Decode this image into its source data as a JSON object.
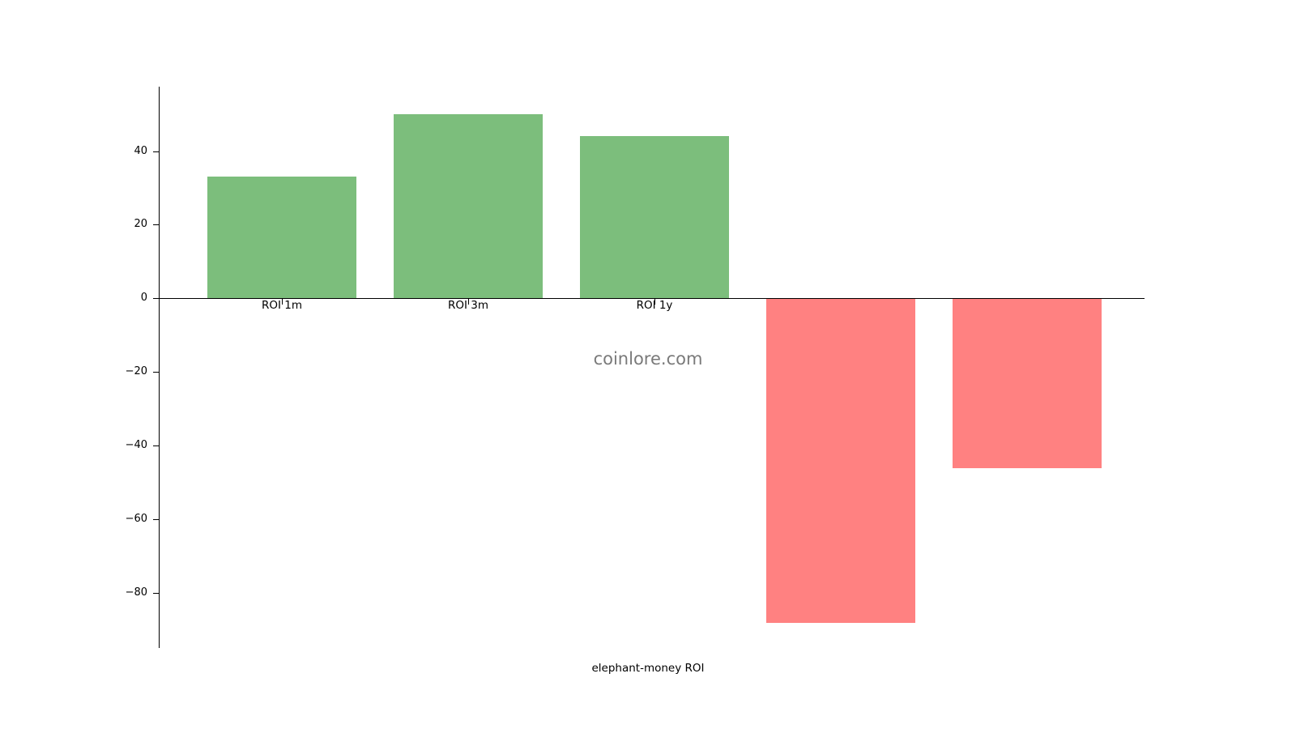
{
  "watermark": "coinlore.com",
  "caption": "elephant-money ROI",
  "colors": {
    "positive_bar": "#7cbe7c",
    "negative_bar": "#ff8181",
    "axis": "#000000",
    "watermark_text": "#7a7a7a",
    "background": "#ffffff"
  },
  "chart_data": {
    "type": "bar",
    "title": "elephant-money ROI",
    "xlabel": "",
    "ylabel": "",
    "categories": [
      "ROI 1m",
      "ROI 3m",
      "ROI 1y",
      "",
      ""
    ],
    "values": [
      33,
      50,
      44,
      -88,
      -46
    ],
    "yticks": [
      40,
      20,
      0,
      -20,
      -40,
      -60,
      -80
    ],
    "ylim": [
      -95,
      57.5
    ],
    "grid": false,
    "legend": "none",
    "color_rule": "green if value >= 0 else red",
    "annotations": [
      "coinlore.com watermark centered in plot",
      "unlabeled negative bars"
    ]
  }
}
